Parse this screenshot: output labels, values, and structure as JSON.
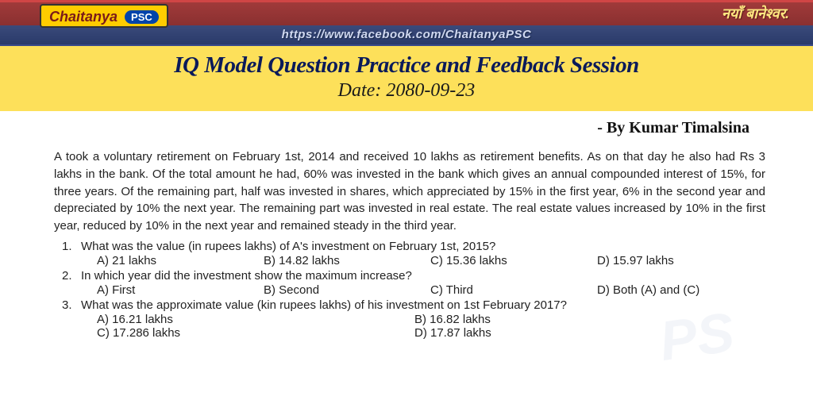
{
  "banner": {
    "brand_text": "Chaitanya",
    "brand_tag": "PSC",
    "right_text": "नयाँ बानेश्वर.",
    "url_text": "https://www.facebook.com/ChaitanyaPSC"
  },
  "header": {
    "title": "IQ Model Question Practice and Feedback Session",
    "date": "Date: 2080-09-23",
    "byline": "- By Kumar Timalsina"
  },
  "passage": "A took a voluntary retirement on February 1st, 2014 and received 10 lakhs as retirement benefits. As on that day he also had Rs 3 lakhs in the bank. Of the total amount he had, 60% was invested in the bank which gives an annual compounded interest of 15%, for three years. Of the remaining part, half was invested in shares, which appreciated by 15% in the first year, 6% in the second year and depreciated by 10% the next year. The remaining part was invested in real estate. The real estate values increased by 10% in the first year, reduced by 10% in the next year and remained steady in the third year.",
  "questions": [
    {
      "num": "1.",
      "text": "What was the value (in rupees lakhs) of A's investment on February 1st, 2015?",
      "layout": "four",
      "options": [
        "A) 21 lakhs",
        "B) 14.82 lakhs",
        "C) 15.36 lakhs",
        "D) 15.97 lakhs"
      ]
    },
    {
      "num": "2.",
      "text": "In which year did the investment show the maximum increase?",
      "layout": "four",
      "options": [
        "A) First",
        "B) Second",
        "C) Third",
        "D) Both (A) and (C)"
      ]
    },
    {
      "num": "3.",
      "text": "What was the approximate value (kin rupees lakhs) of his investment on 1st February 2017?",
      "layout": "two",
      "options": [
        "A) 16.21 lakhs",
        "B) 16.82 lakhs",
        "C) 17.286 lakhs",
        "D) 17.87 lakhs"
      ]
    }
  ]
}
